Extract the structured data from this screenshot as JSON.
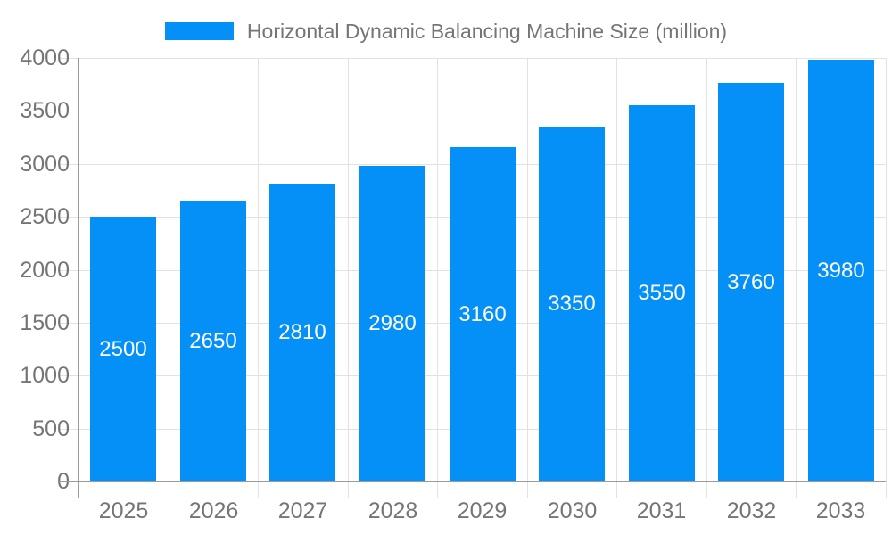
{
  "legend": {
    "label": "Horizontal Dynamic Balancing Machine Size (million)"
  },
  "chart_data": {
    "type": "bar",
    "title": "Horizontal Dynamic Balancing Machine Size (million)",
    "series_name": "Horizontal Dynamic Balancing Machine Size (million)",
    "categories": [
      "2025",
      "2026",
      "2027",
      "2028",
      "2029",
      "2030",
      "2031",
      "2032",
      "2033"
    ],
    "values": [
      2500,
      2650,
      2810,
      2980,
      3160,
      3350,
      3550,
      3760,
      3980
    ],
    "xlabel": "",
    "ylabel": "",
    "ylim": [
      0,
      4000
    ],
    "yticks": [
      0,
      500,
      1000,
      1500,
      2000,
      2500,
      3000,
      3500,
      4000
    ],
    "grid": true,
    "legend_position": "top",
    "bar_labels_inside": true,
    "colors": {
      "bar": "#0590f8",
      "bar_label": "#ffffff",
      "gridline": "#e2e2e2",
      "axis_line": "#9b9b9b",
      "tick_text": "#757575",
      "legend_text": "#757575",
      "background": "#ffffff"
    }
  }
}
